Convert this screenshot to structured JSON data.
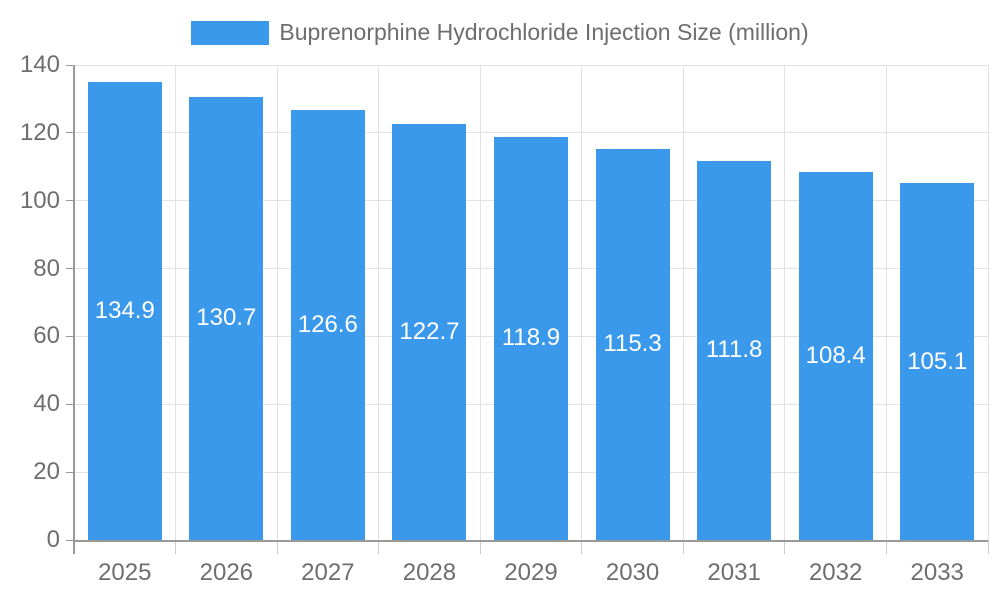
{
  "legend": {
    "label": "Buprenorphine Hydrochloride Injection Size (million)"
  },
  "chart_data": {
    "type": "bar",
    "title": "Buprenorphine Hydrochloride Injection Size (million)",
    "categories": [
      "2025",
      "2026",
      "2027",
      "2028",
      "2029",
      "2030",
      "2031",
      "2032",
      "2033"
    ],
    "values": [
      134.9,
      130.7,
      126.6,
      122.7,
      118.9,
      115.3,
      111.8,
      108.4,
      105.1
    ],
    "series_name": "Buprenorphine Hydrochloride Injection Size (million)",
    "xlabel": "",
    "ylabel": "",
    "ylim": [
      0,
      140
    ],
    "yticks": [
      0,
      20,
      40,
      60,
      80,
      100,
      120,
      140
    ],
    "grid": true,
    "legend_position": "top",
    "value_labels": "inside-center"
  },
  "colors": {
    "bar": "#3B99EC",
    "axis_line": "#999999",
    "grid_line": "#E2E2E2",
    "category_tick": "#CCCCCC",
    "text": "#6E6E6E",
    "value_label": "#FFFFFF",
    "background": "#FFFFFF"
  }
}
